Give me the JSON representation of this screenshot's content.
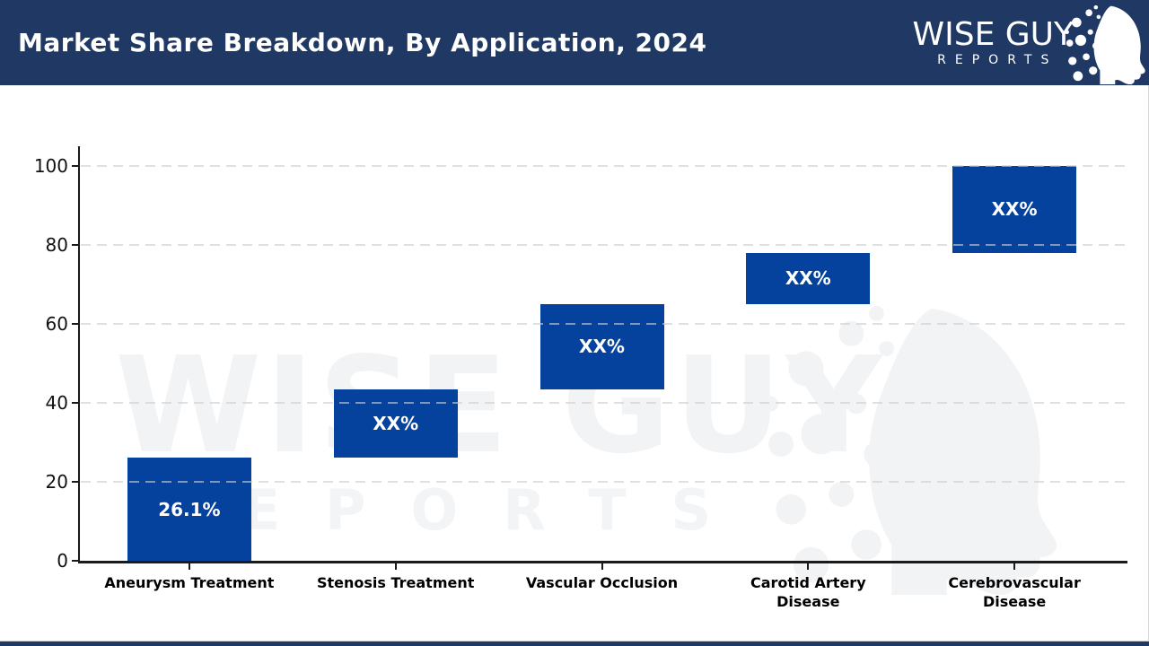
{
  "header": {
    "title": "Market Share Breakdown, By Application, 2024"
  },
  "logo": {
    "name": "WISE GUY",
    "sub": "REPORTS"
  },
  "watermark": {
    "line1": "WISE GUY",
    "line2": "REPORTS"
  },
  "chart_data": {
    "type": "bar",
    "subtype": "waterfall",
    "title": "Market Share Breakdown, By Application, 2024",
    "xlabel": "",
    "ylabel": "",
    "grid": true,
    "legend": false,
    "ylim": [
      0,
      105
    ],
    "yticks": [
      0,
      20,
      40,
      60,
      80,
      100
    ],
    "categories": [
      "Aneurysm Treatment",
      "Stenosis Treatment",
      "Vascular Occlusion",
      "Carotid Artery\nDisease",
      "Cerebrovascular\nDisease"
    ],
    "segments": [
      {
        "category": "Aneurysm Treatment",
        "start": 0,
        "end": 26.1,
        "label": "26.1%"
      },
      {
        "category": "Stenosis Treatment",
        "start": 26.1,
        "end": 43.5,
        "label": "XX%"
      },
      {
        "category": "Vascular Occlusion",
        "start": 43.5,
        "end": 65,
        "label": "XX%"
      },
      {
        "category": "Carotid Artery\nDisease",
        "start": 65,
        "end": 78,
        "label": "XX%"
      },
      {
        "category": "Cerebrovascular\nDisease",
        "start": 78,
        "end": 100,
        "label": "XX%"
      }
    ],
    "bar_color": "#05429d",
    "colors": {
      "header_bg": "#1f3864",
      "bar": "#05429d",
      "grid": "#dcdcdc",
      "axis": "#1a1a1a",
      "value_label": "#ffffff",
      "watermark": "#f2f3f5"
    }
  }
}
